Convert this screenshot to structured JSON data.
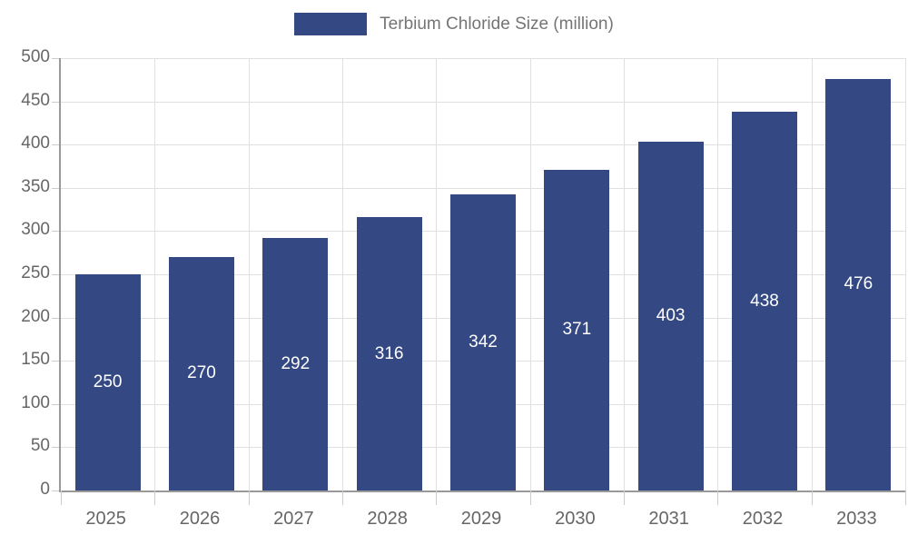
{
  "chart_data": {
    "type": "bar",
    "title": "Terbium Chloride Size (million)",
    "legend": "Terbium Chloride Size (million)",
    "legend_position": "top-center",
    "categories": [
      "2025",
      "2026",
      "2027",
      "2028",
      "2029",
      "2030",
      "2031",
      "2032",
      "2033"
    ],
    "values": [
      250,
      270,
      292,
      316,
      342,
      371,
      403,
      438,
      476
    ],
    "series": [
      {
        "name": "Terbium Chloride Size (million)",
        "values": [
          250,
          270,
          292,
          316,
          342,
          371,
          403,
          438,
          476
        ]
      }
    ],
    "xlabel": "",
    "ylabel": "",
    "ylim": [
      0,
      500
    ],
    "yticks": [
      0,
      50,
      100,
      150,
      200,
      250,
      300,
      350,
      400,
      450,
      500
    ],
    "grid": true,
    "value_labels": "inside-center",
    "colors": {
      "bar": "#344884",
      "bar_label": "#FFFFFF",
      "grid": "#E0E0E0",
      "axis_line": "#999999",
      "tick": "#CCCCCC",
      "axis_text": "#666666",
      "legend_text": "#757575",
      "background": "#FFFFFF"
    }
  }
}
